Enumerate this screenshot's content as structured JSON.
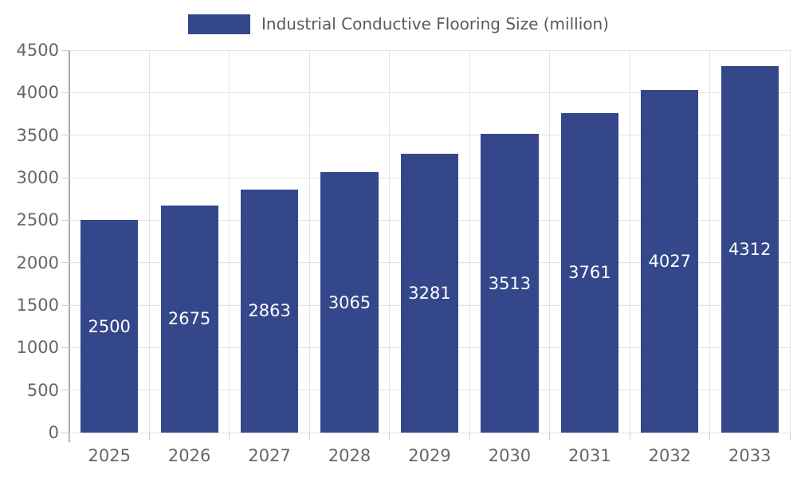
{
  "chart_data": {
    "type": "bar",
    "title": "Industrial Conductive Flooring Size (million)",
    "legend": [
      "Industrial Conductive Flooring Size (million)"
    ],
    "legend_position": "top-center",
    "categories": [
      "2025",
      "2026",
      "2027",
      "2028",
      "2029",
      "2030",
      "2031",
      "2032",
      "2033"
    ],
    "values": [
      2500,
      2675,
      2863,
      3065,
      3281,
      3513,
      3761,
      4027,
      4312
    ],
    "xlabel": "",
    "ylabel": "",
    "ylim": [
      0,
      4500
    ],
    "yticks": [
      0,
      500,
      1000,
      1500,
      2000,
      2500,
      3000,
      3500,
      4000,
      4500
    ],
    "grid": true,
    "bar_labels_shown": true
  },
  "colors": {
    "bar": "#35478B",
    "bar_value_text": "#ffffff",
    "grid": "#e2e2e2",
    "axis_line": "#a6a6a6",
    "tick": "#cccccc",
    "tick_label": "#666666",
    "legend_text": "#595959",
    "background": "#ffffff"
  }
}
